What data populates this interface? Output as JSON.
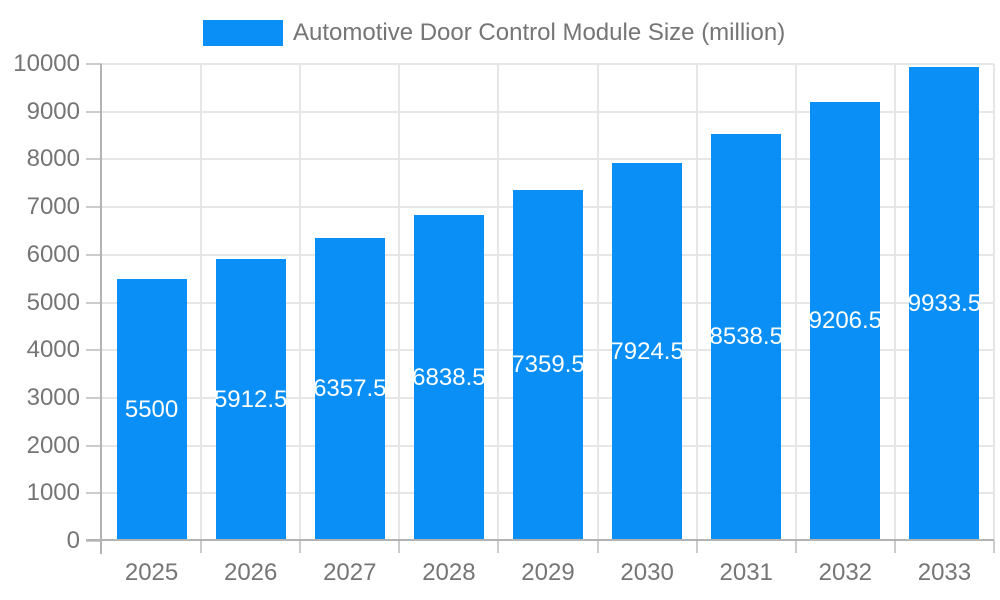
{
  "legend": {
    "items": [
      {
        "label": "Automotive Door Control Module Size (million)",
        "swatch_color": "#0a8ff7"
      }
    ]
  },
  "chart_data": {
    "type": "bar",
    "title": "",
    "categories": [
      "2025",
      "2026",
      "2027",
      "2028",
      "2029",
      "2030",
      "2031",
      "2032",
      "2033"
    ],
    "series": [
      {
        "name": "Automotive Door Control Module Size (million)",
        "values": [
          5500,
          5912.5,
          6357.5,
          6838.5,
          7359.5,
          7924.5,
          8538.5,
          9206.5,
          9933.5
        ],
        "color": "#0a8ff7"
      }
    ],
    "value_labels": [
      "5500",
      "5912.5",
      "6357.5",
      "6838.5",
      "7359.5",
      "7924.5",
      "8538.5",
      "9206.5",
      "9933.5"
    ],
    "xlabel": "",
    "ylabel": "",
    "ylim": [
      0,
      10000
    ],
    "ytick_step": 1000,
    "yticks": [
      0,
      1000,
      2000,
      3000,
      4000,
      5000,
      6000,
      7000,
      8000,
      9000,
      10000
    ],
    "grid": "both",
    "legend_position": "top",
    "colors": {
      "bar": "#0a8ff7",
      "value_label": "#ffffff",
      "axis_text": "#757575",
      "grid_line": "#e6e6e6",
      "axis_line": "#b3b3b3",
      "tick_mark": "#cccccc",
      "background": "#ffffff"
    }
  }
}
